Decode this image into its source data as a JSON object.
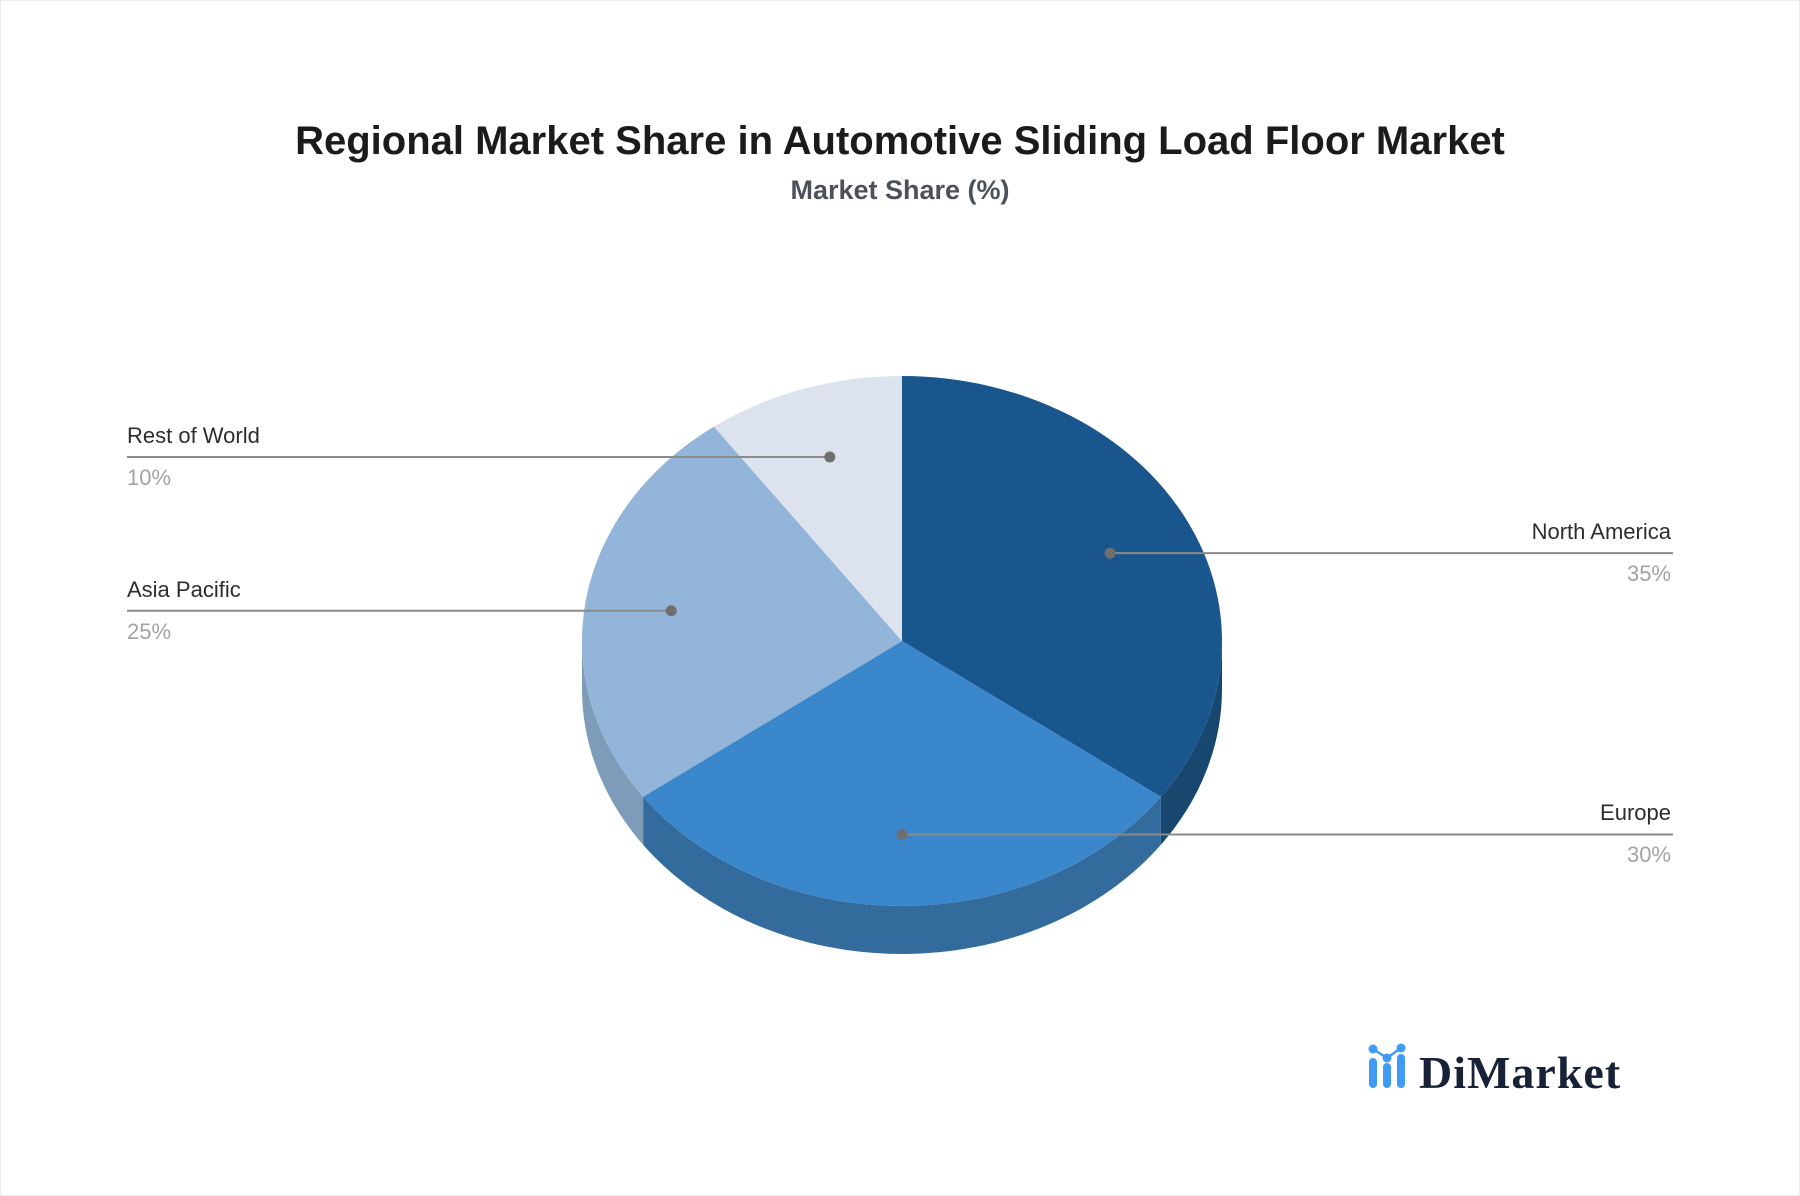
{
  "page": {
    "background": "#ffffff"
  },
  "header": {
    "title": "Regional Market Share in Automotive Sliding Load Floor Market",
    "subtitle": "Market Share (%)"
  },
  "chart_data": {
    "type": "pie",
    "style": "3d",
    "title": "Regional Market Share in Automotive Sliding Load Floor Market",
    "subtitle": "Market Share (%)",
    "unit": "%",
    "direction": "clockwise",
    "start_angle": "top",
    "legend": "none",
    "segments": [
      {
        "label": "North America",
        "value": 35,
        "value_label": "35%",
        "color": "#1a568e",
        "side_color": "#17466f"
      },
      {
        "label": "Europe",
        "value": 30,
        "value_label": "30%",
        "color": "#3a87cb",
        "side_color": "#336b9c"
      },
      {
        "label": "Asia Pacific",
        "value": 25,
        "value_label": "25%",
        "color": "#93b5d9",
        "side_color": "#7e9cba"
      },
      {
        "label": "Rest of World",
        "value": 10,
        "value_label": "10%",
        "color": "#dde3ee",
        "side_color": "#c2cddd"
      }
    ],
    "callout_style": {
      "line_color": "#8b8b8b",
      "dot_color": "#6f6f6f",
      "name_color": "#2b2d31",
      "value_color": "#a3a3a3"
    }
  },
  "branding": {
    "logo_text": "DiMarket",
    "logo_icon": "bar-line-chart-icon",
    "icon_color": "#3f9bf4",
    "text_color": "#172138"
  }
}
